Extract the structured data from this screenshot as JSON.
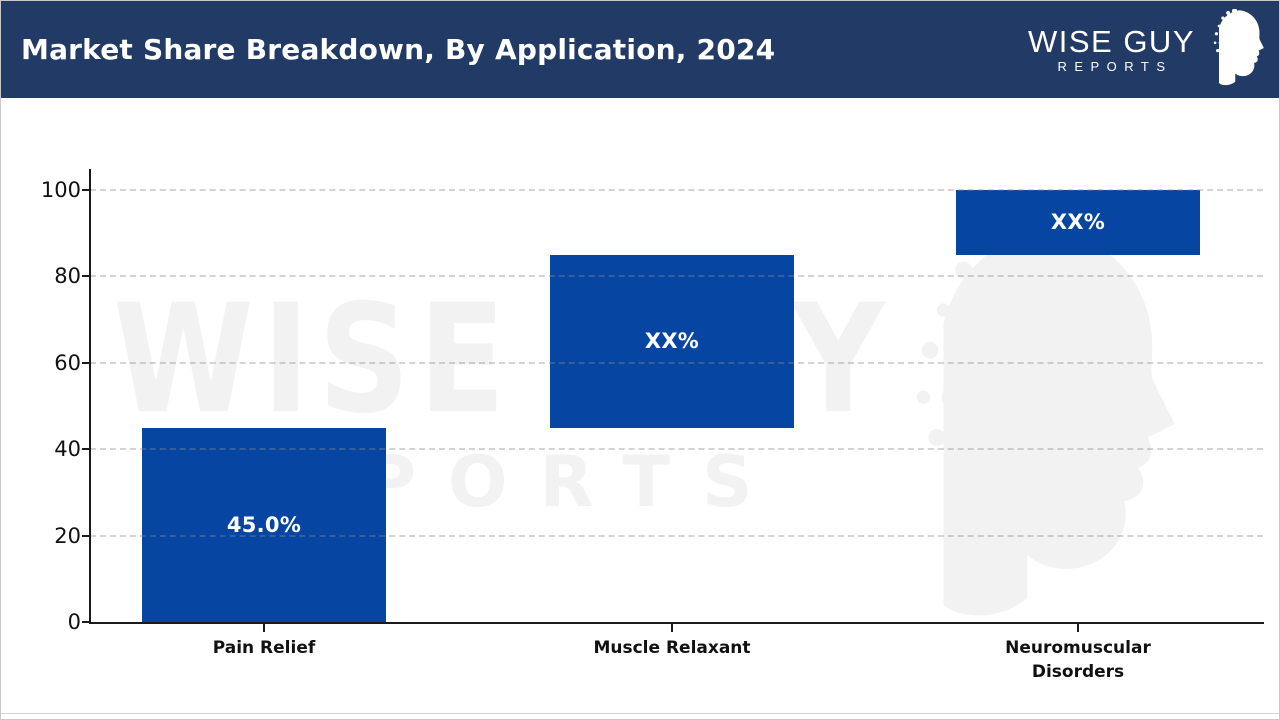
{
  "header": {
    "title": "Market Share Breakdown, By Application, 2024",
    "bg_color": "#223a66",
    "logo": {
      "line1": "WISE GUY",
      "line2": "REPORTS",
      "icon": "dotted-face-profile"
    }
  },
  "watermark": {
    "line1": "WISE GUY",
    "line2": "REPORTS"
  },
  "chart_data": {
    "type": "bar",
    "subtype": "floating-range-bars",
    "title": "Market Share Breakdown, By Application, 2024",
    "categories": [
      "Pain Relief",
      "Muscle Relaxant",
      "Neuromuscular Disorders"
    ],
    "series": [
      {
        "name": "Market share (%)",
        "ranges": [
          {
            "from": 0,
            "to": 45
          },
          {
            "from": 45,
            "to": 85
          },
          {
            "from": 85,
            "to": 100
          }
        ]
      }
    ],
    "bar_labels": [
      "45.0%",
      "XX%",
      "XX%"
    ],
    "xlabel": "",
    "ylabel": "",
    "ylim": [
      0,
      100
    ],
    "yticks": [
      0,
      20,
      40,
      60,
      80,
      100
    ],
    "grid": "horizontal-dashed",
    "legend": "none",
    "bar_color": "#0745a2",
    "bar_label_color": "#ffffff"
  }
}
